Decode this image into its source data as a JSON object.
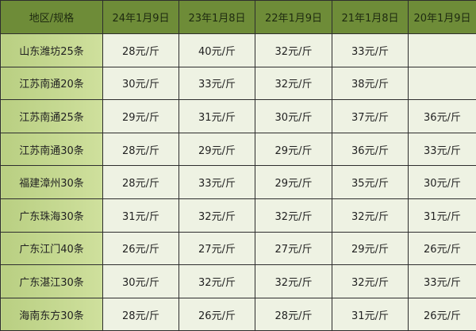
{
  "table": {
    "headers": [
      "地区/规格",
      "24年1月9日",
      "23年1月8日",
      "22年1月9日",
      "21年1月8日",
      "20年1月9日"
    ],
    "rows": [
      {
        "region": "山东潍坊25条",
        "values": [
          "28元/斤",
          "40元/斤",
          "32元/斤",
          "33元/斤",
          ""
        ]
      },
      {
        "region": "江苏南通20条",
        "values": [
          "30元/斤",
          "33元/斤",
          "32元/斤",
          "38元/斤",
          ""
        ]
      },
      {
        "region": "江苏南通25条",
        "values": [
          "29元/斤",
          "31元/斤",
          "30元/斤",
          "37元/斤",
          "36元/斤"
        ]
      },
      {
        "region": "江苏南通30条",
        "values": [
          "28元/斤",
          "29元/斤",
          "29元/斤",
          "36元/斤",
          "33元/斤"
        ]
      },
      {
        "region": "福建漳州30条",
        "values": [
          "28元/斤",
          "33元/斤",
          "29元/斤",
          "35元/斤",
          "30元/斤"
        ]
      },
      {
        "region": "广东珠海30条",
        "values": [
          "31元/斤",
          "32元/斤",
          "32元/斤",
          "32元/斤",
          "31元/斤"
        ]
      },
      {
        "region": "广东江门40条",
        "values": [
          "26元/斤",
          "27元/斤",
          "27元/斤",
          "29元/斤",
          "26元/斤"
        ]
      },
      {
        "region": "广东湛江30条",
        "values": [
          "30元/斤",
          "32元/斤",
          "32元/斤",
          "32元/斤",
          "33元/斤"
        ]
      },
      {
        "region": "海南东方30条",
        "values": [
          "28元/斤",
          "26元/斤",
          "28元/斤",
          "31元/斤",
          "26元/斤"
        ]
      }
    ]
  },
  "colors": {
    "header": "#6e8c38",
    "region_column": "#c5d890",
    "cell": "#eef2e3",
    "border": "#2e2e2e"
  }
}
